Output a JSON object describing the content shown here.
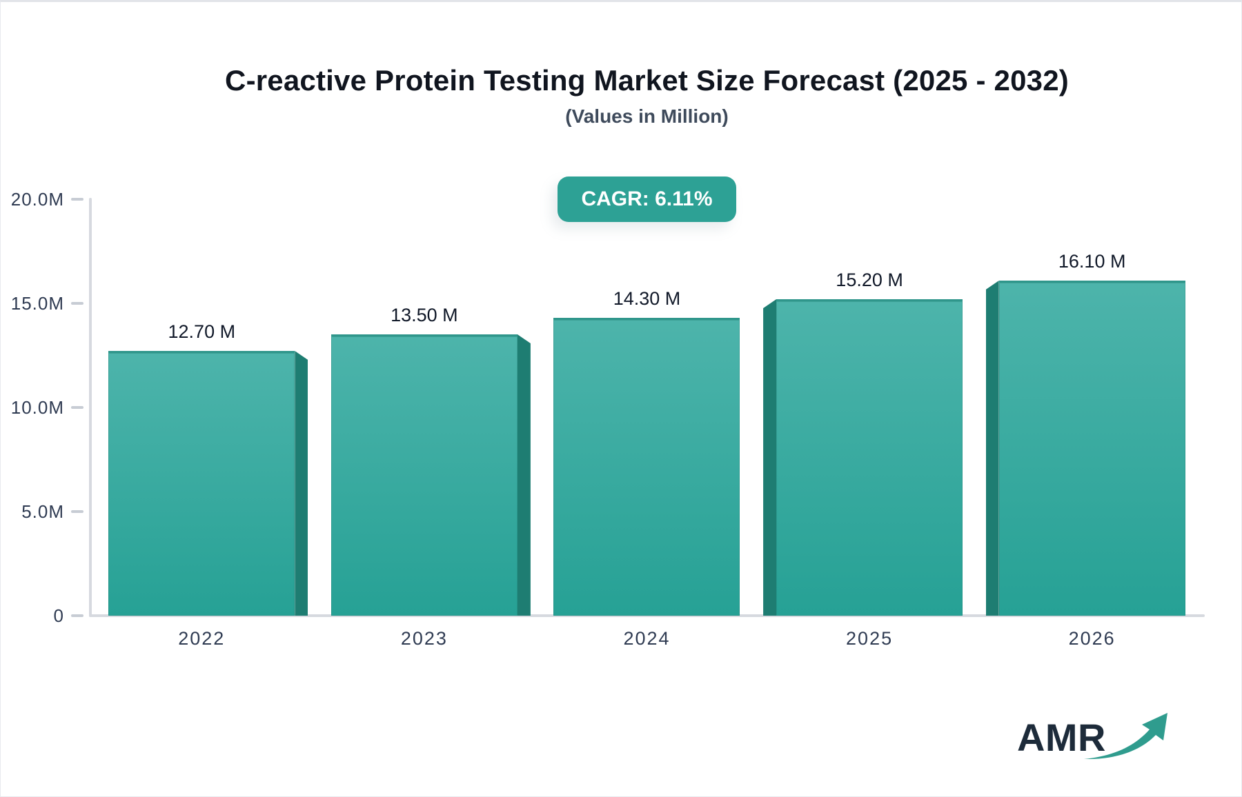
{
  "header": {
    "title": "C-reactive Protein Testing Market Size Forecast (2025 - 2032)",
    "subtitle": "(Values in Million)",
    "cagr_label": "CAGR: 6.11%"
  },
  "chart_data": {
    "type": "bar",
    "categories": [
      "2022",
      "2023",
      "2024",
      "2025",
      "2026"
    ],
    "values": [
      12.7,
      13.5,
      14.3,
      15.2,
      16.1
    ],
    "value_labels": [
      "12.70 M",
      "13.50 M",
      "14.30 M",
      "15.20 M",
      "16.10 M"
    ],
    "unit": "Million",
    "title": "C-reactive Protein Testing Market Size Forecast (2025 - 2032)",
    "subtitle": "(Values in Million)",
    "cagr_pct": 6.11,
    "xlabel": "",
    "ylabel": "",
    "ylim": [
      0,
      20
    ],
    "yticks": [
      0,
      5,
      10,
      15,
      20
    ],
    "ytick_labels": [
      "0",
      "5.0M",
      "10.0M",
      "15.0M",
      "20.0M"
    ],
    "grid": false,
    "legend": "none",
    "bar_style_3d_bevel_sides": [
      "right",
      "right",
      "none",
      "left",
      "left"
    ]
  },
  "colors": {
    "bar_top": "#4db4ab",
    "bar_bottom": "#26a195",
    "bar_border": "#2f968b",
    "bevel": "#1e7d72",
    "badge_bg": "#2da195",
    "badge_text": "#ffffff",
    "axis_line": "#d6d9df",
    "tick": "#c7ccd4",
    "axis_text": "#2f3b52",
    "title_text": "#10151f",
    "subtitle_text": "#3e4a5b",
    "value_text": "#101828",
    "logo_text": "#1d2b3a",
    "logo_arrow": "#2f9c8e"
  },
  "logo": {
    "text": "AMR"
  },
  "icons": {
    "logo_arrow": "growth-arrow-icon"
  }
}
